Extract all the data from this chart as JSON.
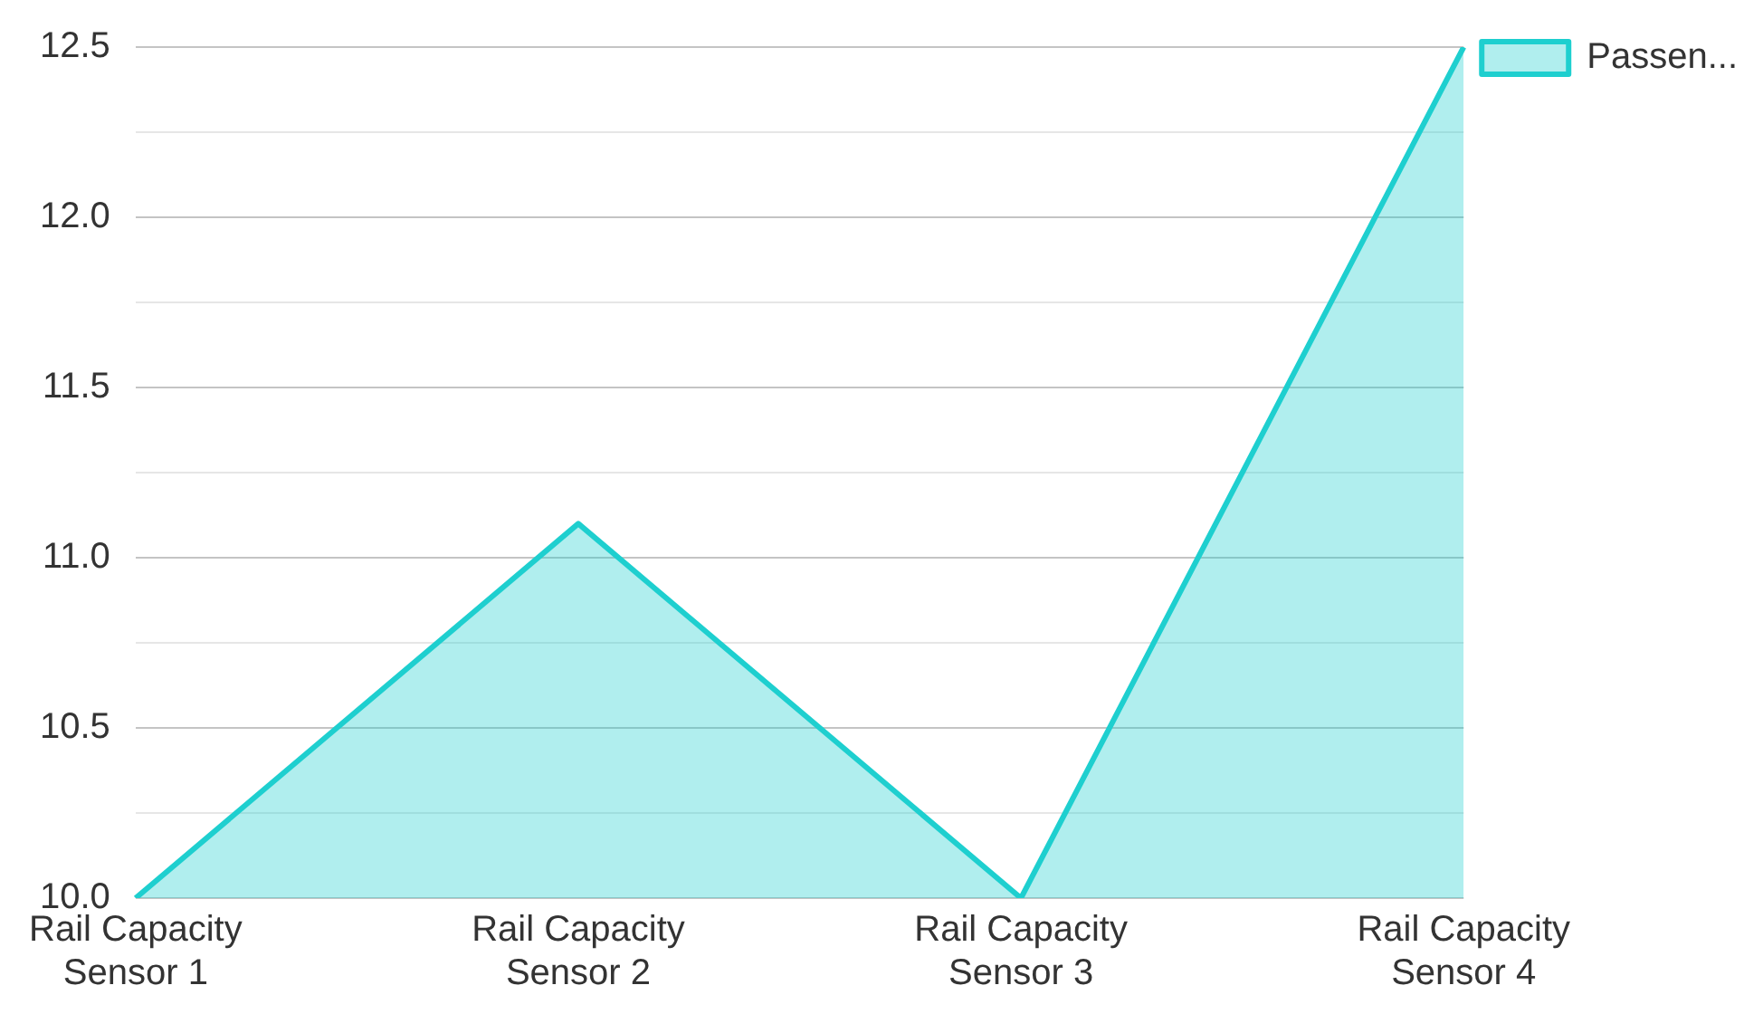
{
  "chart_data": {
    "type": "area",
    "categories": [
      "Rail Capacity Sensor 1",
      "Rail Capacity Sensor 2",
      "Rail Capacity Sensor 3",
      "Rail Capacity Sensor 4"
    ],
    "series": [
      {
        "name": "Passen...",
        "color": "#1ecfcf",
        "values": [
          10.0,
          11.1,
          10.0,
          12.5
        ]
      }
    ],
    "ylim": [
      10,
      12.5
    ],
    "yticks": [
      {
        "value": 10,
        "label": "10.0"
      },
      {
        "value": 10.25,
        "label": null
      },
      {
        "value": 10.5,
        "label": "10.5"
      },
      {
        "value": 10.75,
        "label": null
      },
      {
        "value": 11,
        "label": "11.0"
      },
      {
        "value": 11.25,
        "label": null
      },
      {
        "value": 11.5,
        "label": "11.5"
      },
      {
        "value": 11.75,
        "label": null
      },
      {
        "value": 12,
        "label": "12.0"
      },
      {
        "value": 12.25,
        "label": null
      },
      {
        "value": 12.5,
        "label": "12.5"
      }
    ],
    "grid": "y",
    "legend": "top right"
  }
}
